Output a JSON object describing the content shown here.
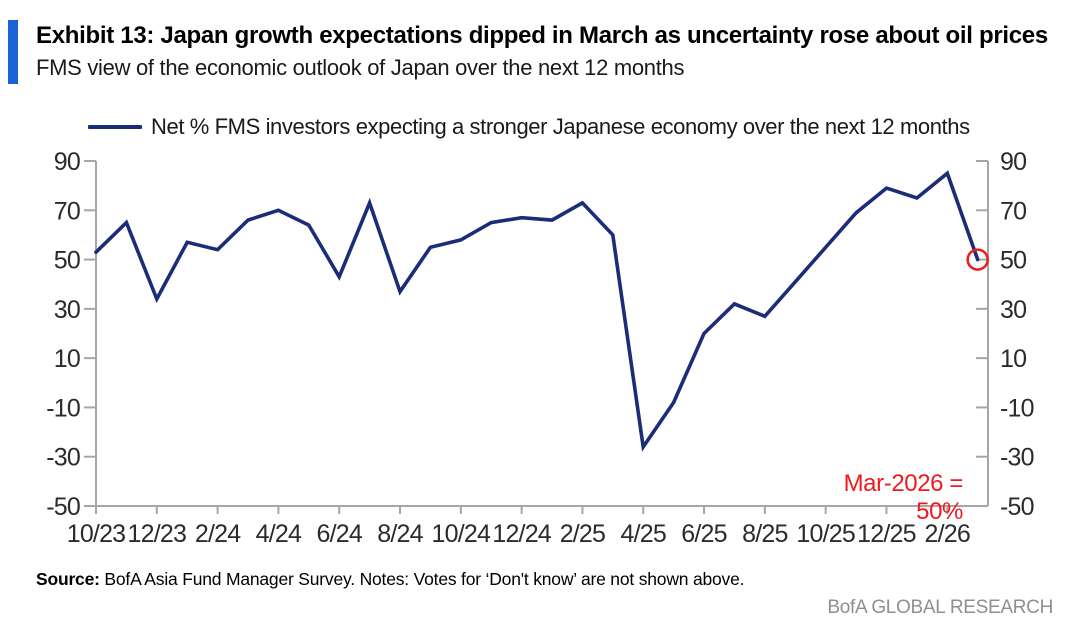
{
  "header": {
    "title": "Exhibit 13: Japan growth expectations dipped in March as uncertainty rose about oil prices",
    "subtitle": "FMS view of the economic outlook of Japan over the next 12 months"
  },
  "legend": {
    "label": "Net % FMS investors expecting a stronger Japanese economy over the next 12 months"
  },
  "annotation": {
    "text": "Mar-2026 = 50%"
  },
  "footer": {
    "source_label": "Source:",
    "source_text": " BofA Asia Fund Manager Survey. Notes: Votes for ‘Don't know’ are not shown above.",
    "brand": "BofA GLOBAL RESEARCH"
  },
  "colors": {
    "accent_bar": "#1a63d4",
    "line": "#1c2d78",
    "axis": "#a6a6a6",
    "red": "#f01a1e",
    "tick_label": "#2b2b2b"
  },
  "chart_data": {
    "type": "line",
    "title": "",
    "xlabel": "",
    "ylabel": "Net %",
    "grid": false,
    "legend_position": "top",
    "ylim": [
      -50,
      90
    ],
    "y_ticks": [
      90,
      70,
      50,
      30,
      10,
      -10,
      -30,
      -50
    ],
    "x_tick_labels": [
      "10/23",
      "12/23",
      "2/24",
      "4/24",
      "6/24",
      "8/24",
      "10/24",
      "12/24",
      "2/25",
      "4/25",
      "6/25",
      "8/25",
      "10/25",
      "12/25",
      "2/26"
    ],
    "categories": [
      "10/23",
      "11/23",
      "12/23",
      "1/24",
      "2/24",
      "3/24",
      "4/24",
      "5/24",
      "6/24",
      "7/24",
      "8/24",
      "9/24",
      "10/24",
      "11/24",
      "12/24",
      "1/25",
      "2/25",
      "3/25",
      "4/25",
      "5/25",
      "6/25",
      "7/25",
      "8/25",
      "9/25",
      "10/25",
      "11/25",
      "12/25",
      "1/26",
      "2/26",
      "3/26"
    ],
    "series": [
      {
        "name": "Net % FMS investors expecting a stronger Japanese economy over the next 12 months",
        "values": [
          53,
          65,
          34,
          57,
          54,
          66,
          70,
          64,
          43,
          73,
          37,
          55,
          58,
          65,
          67,
          66,
          73,
          60,
          -26,
          -8,
          20,
          32,
          27,
          41,
          55,
          69,
          79,
          75,
          85,
          50
        ]
      }
    ],
    "highlight": {
      "category": "3/26",
      "value": 50,
      "label": "Mar-2026 = 50%"
    }
  }
}
